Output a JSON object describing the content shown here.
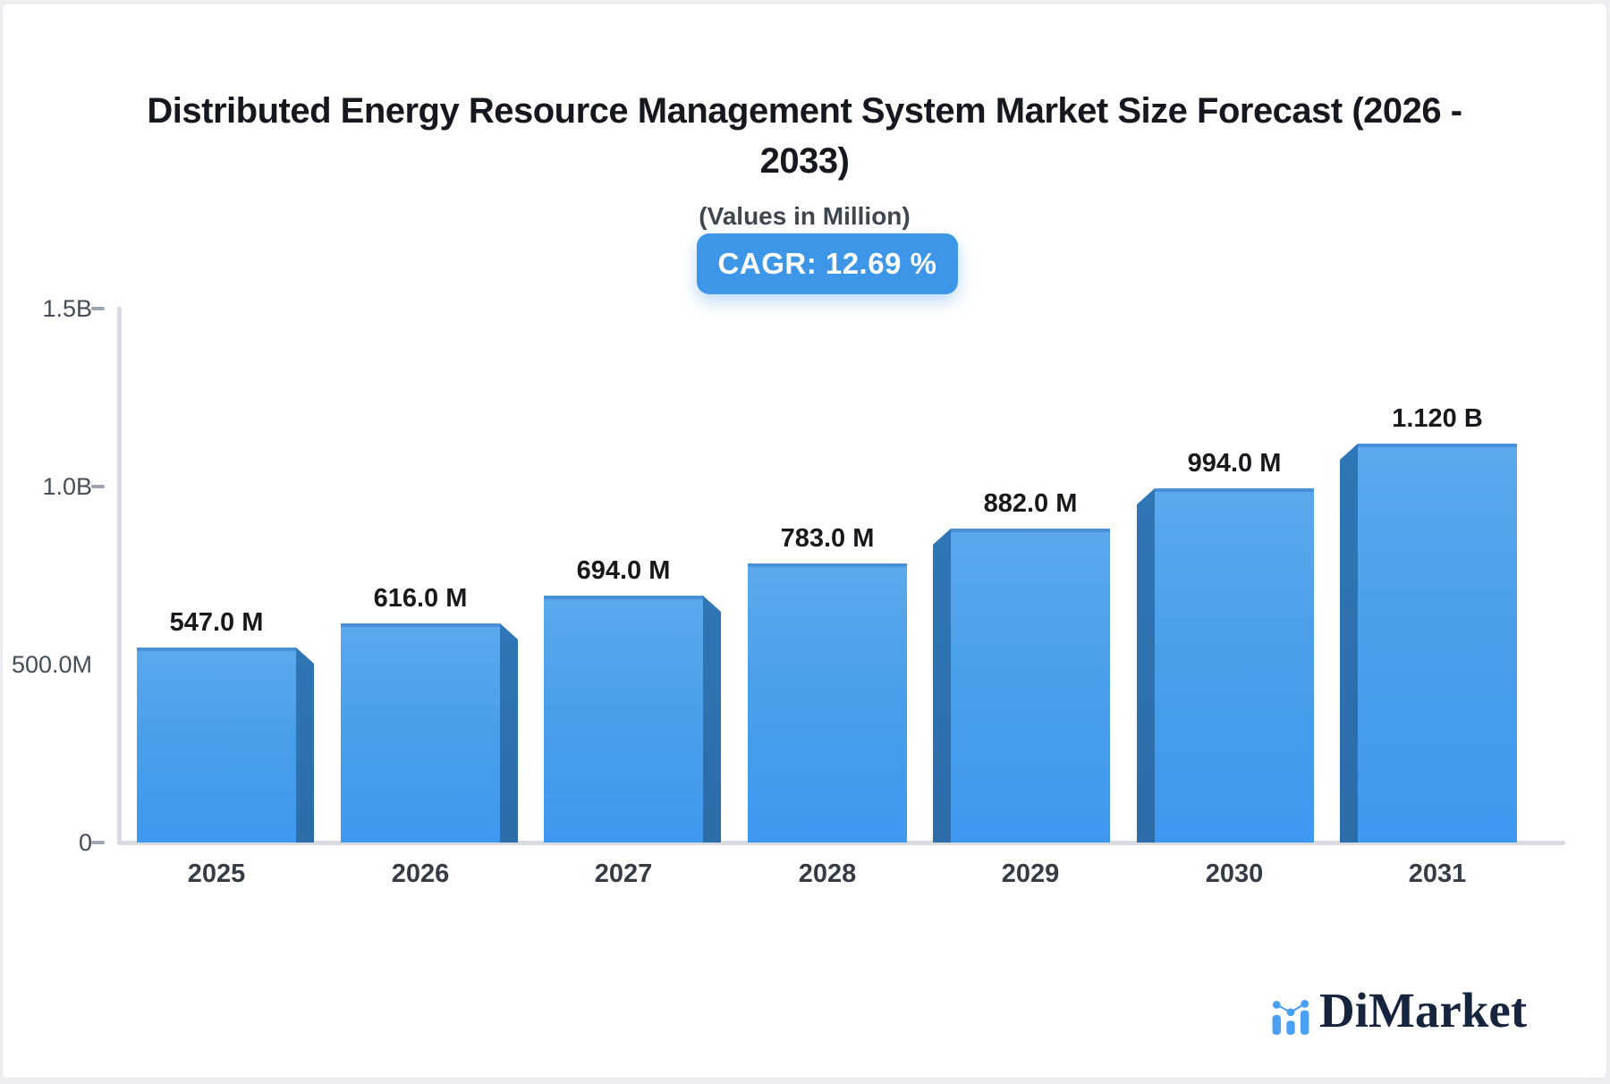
{
  "page": {
    "background": "#ECEEF1",
    "card_background": "#FFFFFF"
  },
  "header": {
    "title_line1": "Distributed Energy Resource Management System Market Size Forecast (2026 -",
    "title_line2": "2033)",
    "subtitle": "(Values in Million)",
    "cagr_badge": "CAGR: 12.69 %"
  },
  "footer": {
    "brand": "DiMarket"
  },
  "colors": {
    "accent_blue": "#3D96E8",
    "bar_face_top": "#5BA8EC",
    "bar_face_bottom": "#3F98F0",
    "bar_side": "#2E73B0",
    "bar_top_edge": "#4A90D8",
    "axis_gray": "#D8DCE1",
    "tick_dash": "#9FA5B0",
    "logo_navy": "#16243D",
    "logo_blue": "#4AA0F4"
  },
  "chart_data": {
    "type": "bar",
    "title": "Distributed Energy Resource Management System Market Size Forecast (2026 - 2033)",
    "subtitle": "(Values in Million)",
    "cagr_percent": 12.69,
    "categories": [
      "2025",
      "2026",
      "2027",
      "2028",
      "2029",
      "2030",
      "2031"
    ],
    "values_millions": [
      547,
      616,
      694,
      783,
      882,
      994,
      1120
    ],
    "bar_labels": [
      "547.0 M",
      "616.0 M",
      "694.0 M",
      "783.0 M",
      "882.0 M",
      "994.0 M",
      "1.120 B"
    ],
    "ylim_millions": [
      0,
      1500
    ],
    "yticks": [
      {
        "label": "1.5B",
        "value_millions": 1500,
        "dash": true
      },
      {
        "label": "1.0B",
        "value_millions": 1000,
        "dash": true
      },
      {
        "label": "500.0M",
        "value_millions": 500,
        "dash": false
      },
      {
        "label": "0",
        "value_millions": 0,
        "dash": true
      }
    ],
    "grid": false,
    "legend": false
  }
}
